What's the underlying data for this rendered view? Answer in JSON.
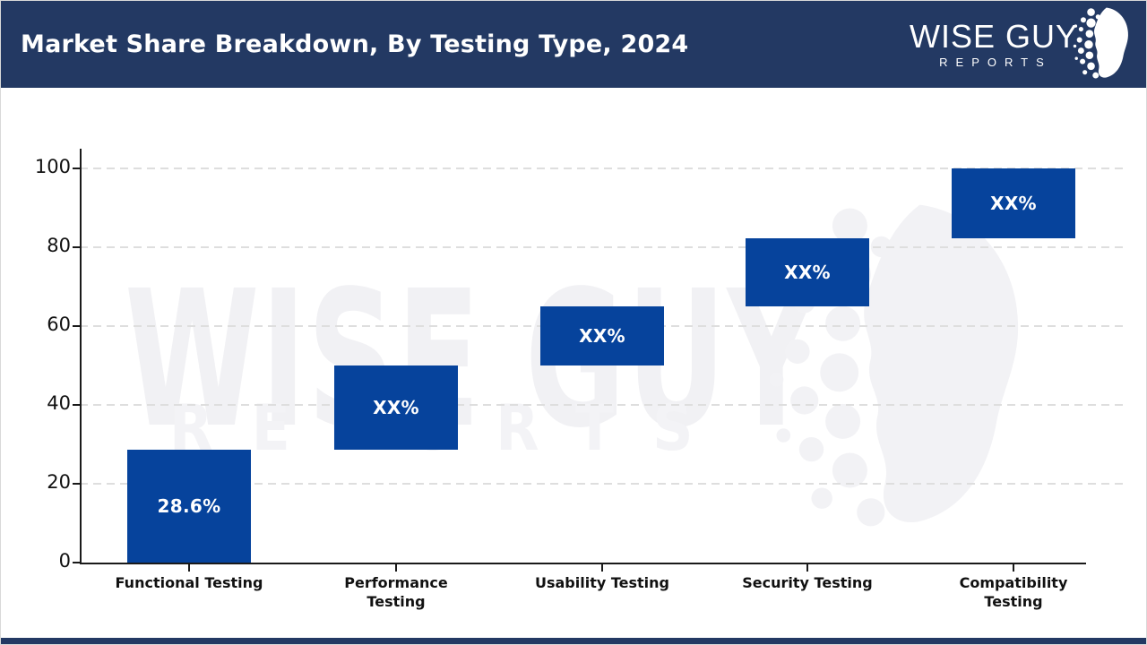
{
  "header": {
    "title": "Market Share Breakdown, By Testing Type, 2024",
    "logo_line1": "WISE GUY",
    "logo_line2": "REPORTS"
  },
  "watermark": {
    "line1": "WISE GUY",
    "line2": "REPORTS"
  },
  "colors": {
    "header_bg": "#233963",
    "bar": "#06439C",
    "grid": "#dedede",
    "axis": "#1a1a1a"
  },
  "chart_data": {
    "type": "bar",
    "subtype": "waterfall-floating-bars",
    "title": "Market Share Breakdown, By Testing Type, 2024",
    "categories": [
      "Functional Testing",
      "Performance\nTesting",
      "Usability Testing",
      "Security Testing",
      "Compatibility\nTesting"
    ],
    "segments": [
      {
        "category": "Functional Testing",
        "start": 0,
        "end": 28.6,
        "label": "28.6%"
      },
      {
        "category": "Performance Testing",
        "start": 28.6,
        "end": 50,
        "label": "XX%"
      },
      {
        "category": "Usability Testing",
        "start": 50,
        "end": 65,
        "label": "XX%"
      },
      {
        "category": "Security Testing",
        "start": 65,
        "end": 82.3,
        "label": "XX%"
      },
      {
        "category": "Compatibility Testing",
        "start": 82.3,
        "end": 100,
        "label": "XX%"
      }
    ],
    "yticks": [
      0,
      20,
      40,
      60,
      80,
      100
    ],
    "ylim": [
      0,
      100
    ],
    "xlabel": "",
    "ylabel": "",
    "legend": "none",
    "grid": "horizontal-dashed"
  }
}
